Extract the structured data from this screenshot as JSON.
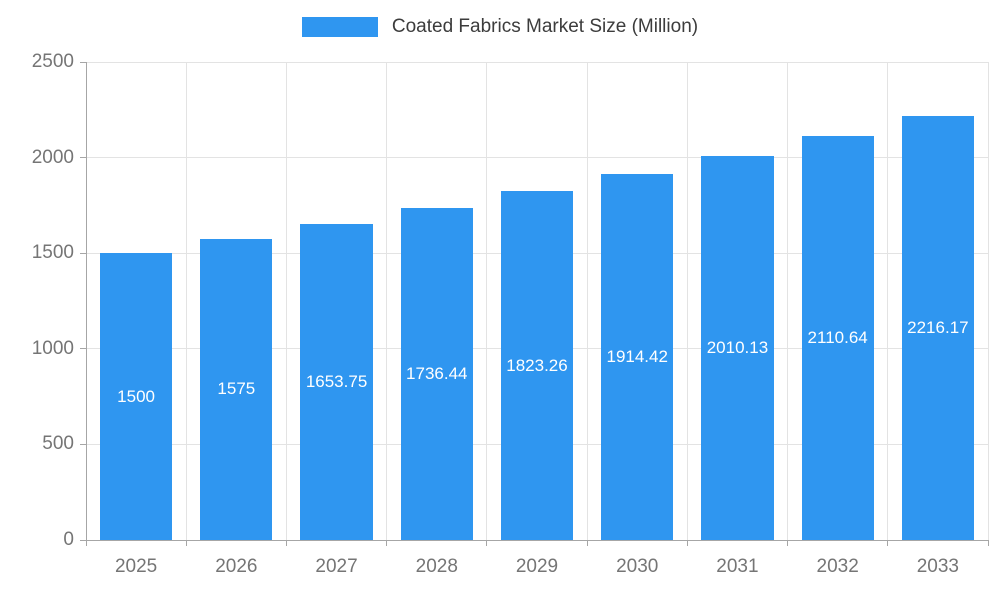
{
  "chart_data": {
    "type": "bar",
    "title": "Coated Fabrics Market Size (Million)",
    "categories": [
      "2025",
      "2026",
      "2027",
      "2028",
      "2029",
      "2030",
      "2031",
      "2032",
      "2033"
    ],
    "values": [
      1500,
      1575,
      1653.75,
      1736.44,
      1823.26,
      1914.42,
      2010.13,
      2110.64,
      2216.17
    ],
    "value_labels": [
      "1500",
      "1575",
      "1653.75",
      "1736.44",
      "1823.26",
      "1914.42",
      "2010.13",
      "2110.64",
      "2216.17"
    ],
    "xlabel": "",
    "ylabel": "",
    "ylim": [
      0,
      2500
    ],
    "yticks": [
      0,
      500,
      1000,
      1500,
      2000,
      2500
    ],
    "grid": true,
    "legend_position": "top",
    "bar_color": "#2f96f0",
    "bar_label_color": "#ffffff",
    "axis_text_color": "#757575"
  }
}
